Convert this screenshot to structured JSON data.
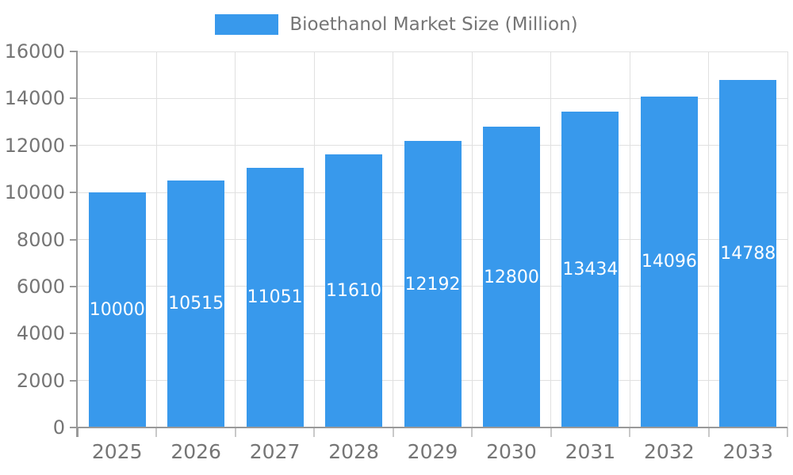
{
  "legend": {
    "label": "Bioethanol Market Size (Million)"
  },
  "colors": {
    "bar": "#3899EC",
    "grid_line": "#E0E0E0",
    "axis_line": "#999999",
    "x_tick": "#C9C9C9",
    "tick_text": "#757575",
    "bar_label_text": "#FFFFFF",
    "background": "#FFFFFF"
  },
  "chart_data": {
    "type": "bar",
    "title": "Bioethanol Market Size (Million)",
    "categories": [
      "2025",
      "2026",
      "2027",
      "2028",
      "2029",
      "2030",
      "2031",
      "2032",
      "2033"
    ],
    "series": [
      {
        "name": "Bioethanol Market Size (Million)",
        "values": [
          10000,
          10515,
          11051,
          11610,
          12192,
          12800,
          13434,
          14096,
          14788
        ]
      }
    ],
    "xlabel": "",
    "ylabel": "",
    "ylim": [
      0,
      16000
    ],
    "y_ticks": [
      0,
      2000,
      4000,
      6000,
      8000,
      10000,
      12000,
      14000,
      16000
    ],
    "grid": true,
    "legend_position": "top-center",
    "data_labels": "inside-center-white"
  }
}
